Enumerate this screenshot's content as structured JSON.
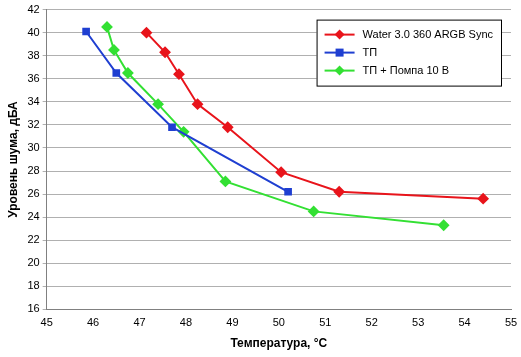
{
  "chart_data": {
    "type": "line",
    "x_label": "Температура, °C",
    "y_label": "Уровень шума, дБА",
    "xlim": [
      45,
      55
    ],
    "xticks": [
      45,
      46,
      47,
      48,
      49,
      50,
      51,
      52,
      53,
      54,
      55
    ],
    "ylim": [
      16,
      42
    ],
    "yticks": [
      16,
      18,
      20,
      22,
      24,
      26,
      28,
      30,
      32,
      34,
      36,
      38,
      40,
      42
    ],
    "grid": true,
    "legend": "upper right",
    "series": [
      {
        "name": "Water 3.0 360 ARGB Sync",
        "color": "#e8141b",
        "marker": "diamond",
        "line_style": "solid",
        "x": [
          47.15,
          47.55,
          47.85,
          48.25,
          48.9,
          50.05,
          51.3,
          54.4
        ],
        "values": [
          40.0,
          38.3,
          36.4,
          33.8,
          31.8,
          27.9,
          26.2,
          25.6
        ]
      },
      {
        "name": "ТП",
        "color": "#1f3fd1",
        "marker": "square",
        "line_style": "solid",
        "x": [
          45.85,
          46.5,
          47.7,
          50.2
        ],
        "values": [
          40.1,
          36.5,
          31.8,
          26.2
        ]
      },
      {
        "name": "ТП + Помпа 10 В",
        "color": "#33e033",
        "marker": "diamond",
        "line_style": "solid",
        "x": [
          46.3,
          46.45,
          46.75,
          47.4,
          47.95,
          48.85,
          50.75,
          53.55
        ],
        "values": [
          40.5,
          38.5,
          36.5,
          33.8,
          31.4,
          27.1,
          24.5,
          23.3
        ]
      }
    ]
  }
}
